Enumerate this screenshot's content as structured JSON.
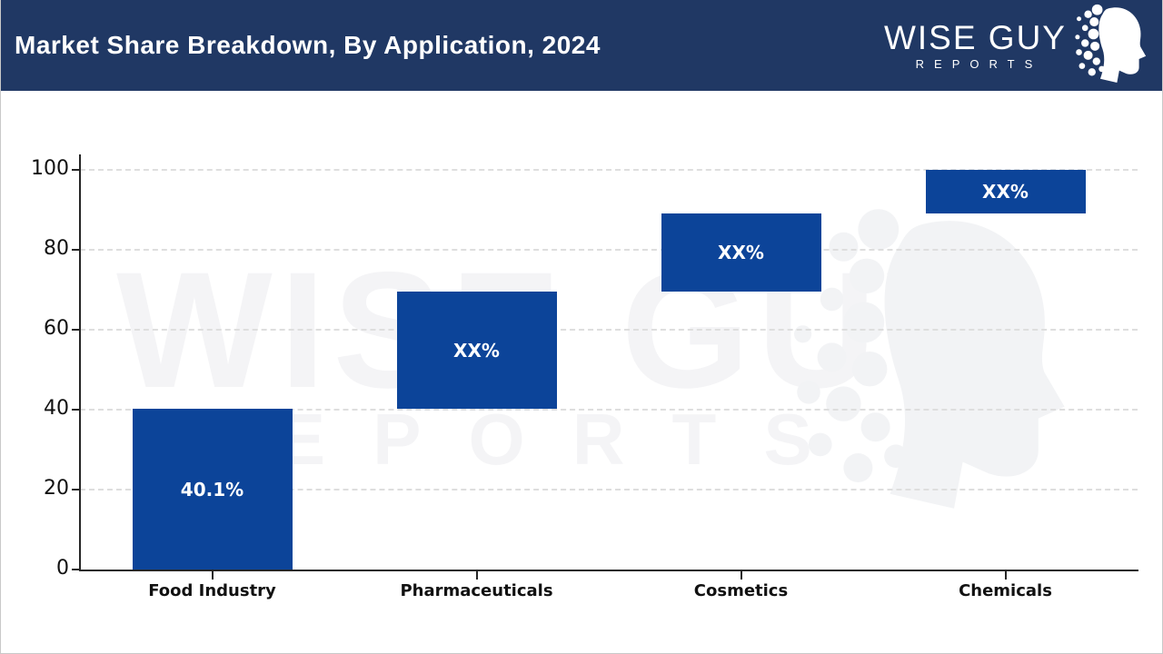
{
  "colors": {
    "header_bg": "#203864",
    "bar": "#0c4499",
    "bar_label": "#ffffff",
    "axis": "#262626",
    "grid": "#dedede",
    "title_text": "#ffffff"
  },
  "header": {
    "title": "Market Share Breakdown, By Application, 2024",
    "logo_line1": "WISE GUY",
    "logo_line2": "REPORTS"
  },
  "watermark": {
    "line1": "WISE GUY",
    "line2": "REPORTS"
  },
  "chart_data": {
    "type": "bar",
    "subtype": "waterfall",
    "title": "Market Share Breakdown, By Application, 2024",
    "categories": [
      "Food Industry",
      "Pharmaceuticals",
      "Cosmetics",
      "Chemicals"
    ],
    "bars": [
      {
        "category": "Food Industry",
        "start": 0,
        "end": 40.1,
        "label": "40.1%"
      },
      {
        "category": "Pharmaceuticals",
        "start": 40.1,
        "end": 69.5,
        "label": "XX%"
      },
      {
        "category": "Cosmetics",
        "start": 69.5,
        "end": 89.0,
        "label": "XX%"
      },
      {
        "category": "Chemicals",
        "start": 89.0,
        "end": 100,
        "label": "XX%"
      }
    ],
    "xlabel": "",
    "ylabel": "",
    "ylim": [
      0,
      100
    ],
    "yticks": [
      0,
      20,
      40,
      60,
      80,
      100
    ],
    "grid": "horizontal-dashed",
    "legend_position": "none"
  }
}
